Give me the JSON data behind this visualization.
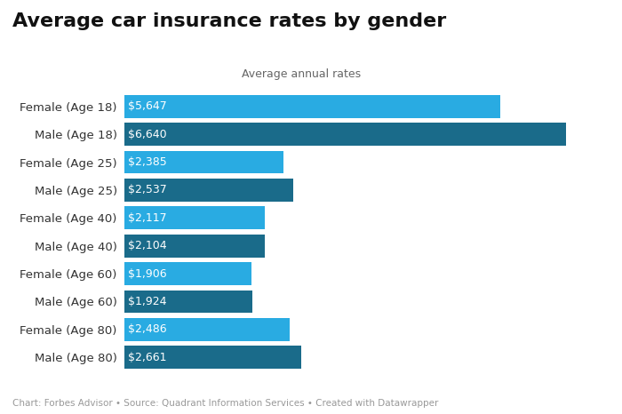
{
  "title": "Average car insurance rates by gender",
  "subtitle": "Average annual rates",
  "footer": "Chart: Forbes Advisor • Source: Quadrant Information Services • Created with Datawrapper",
  "categories": [
    "Female (Age 18)",
    "Male (Age 18)",
    "Female (Age 25)",
    "Male (Age 25)",
    "Female (Age 40)",
    "Male (Age 40)",
    "Female (Age 60)",
    "Male (Age 60)",
    "Female (Age 80)",
    "Male (Age 80)"
  ],
  "values": [
    5647,
    6640,
    2385,
    2537,
    2117,
    2104,
    1906,
    1924,
    2486,
    2661
  ],
  "labels": [
    "$5,647",
    "$6,640",
    "$2,385",
    "$2,537",
    "$2,117",
    "$2,104",
    "$1,906",
    "$1,924",
    "$2,486",
    "$2,661"
  ],
  "bar_colors": [
    "#29abe2",
    "#1a6b8a",
    "#29abe2",
    "#1a6b8a",
    "#29abe2",
    "#1a6b8a",
    "#29abe2",
    "#1a6b8a",
    "#29abe2",
    "#1a6b8a"
  ],
  "xlim": [
    0,
    7200
  ],
  "background_color": "#ffffff",
  "title_fontsize": 16,
  "subtitle_fontsize": 9,
  "label_fontsize": 9,
  "ytick_fontsize": 9.5,
  "footer_fontsize": 7.5
}
